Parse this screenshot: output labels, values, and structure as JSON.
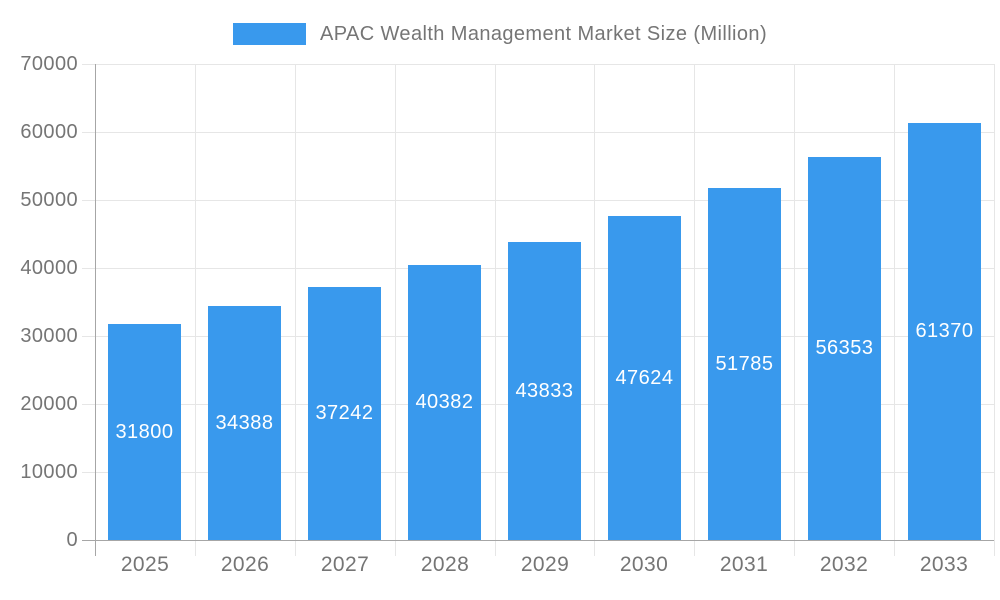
{
  "legend": {
    "label": "APAC Wealth Management Market Size (Million)"
  },
  "chart_data": {
    "type": "bar",
    "title": "APAC Wealth Management Market Size (Million)",
    "categories": [
      "2025",
      "2026",
      "2027",
      "2028",
      "2029",
      "2030",
      "2031",
      "2032",
      "2033"
    ],
    "values": [
      31800,
      34388,
      37242,
      40382,
      43833,
      47624,
      51785,
      56353,
      61370
    ],
    "xlabel": "",
    "ylabel": "",
    "ylim": [
      0,
      70000
    ],
    "ytick_step": 10000,
    "ytick_labels": [
      "0",
      "10000",
      "20000",
      "30000",
      "40000",
      "50000",
      "60000",
      "70000"
    ],
    "grid": true,
    "legend_position": "top",
    "value_labels": "inside-center-white",
    "colors": {
      "bar": "#3999ed",
      "grid": "#e6e6e6",
      "axis_line": "#a6a6a6",
      "axis_text": "#757575",
      "value_label": "#ffffff",
      "background": "#ffffff"
    }
  }
}
